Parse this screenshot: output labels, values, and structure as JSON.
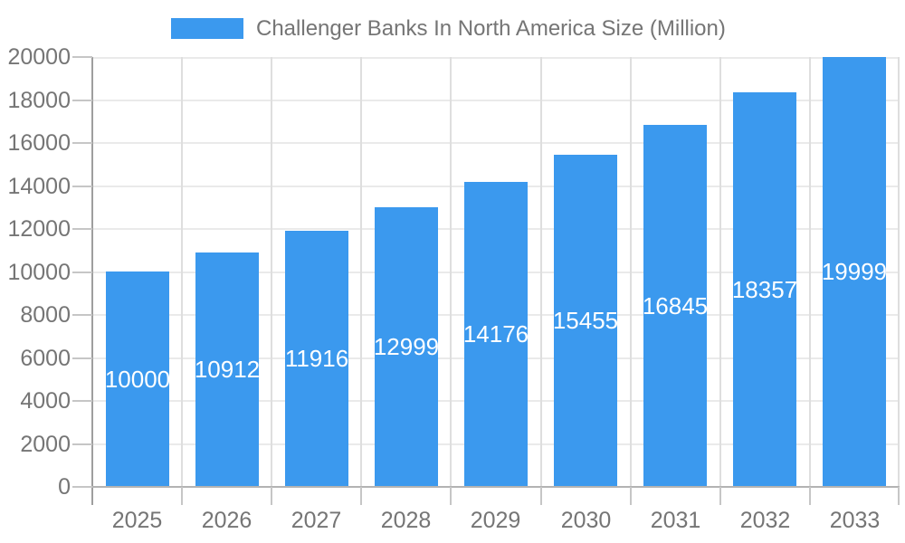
{
  "chart_data": {
    "type": "bar",
    "title": "Challenger Banks In North America Size (Million)",
    "legend": {
      "label": "Challenger Banks In North America Size (Million)",
      "position": "top-center"
    },
    "categories": [
      "2025",
      "2026",
      "2027",
      "2028",
      "2029",
      "2030",
      "2031",
      "2032",
      "2033"
    ],
    "values": [
      10000,
      10912,
      11916,
      12999,
      14176,
      15455,
      16845,
      18357,
      19999
    ],
    "bar_value_labels": [
      "10000",
      "10912",
      "11916",
      "12999",
      "14176",
      "15455",
      "16845",
      "18357",
      "19999"
    ],
    "xlabel": "",
    "ylabel": "",
    "ylim": [
      0,
      20000
    ],
    "ytick_step": 2000,
    "yticks": [
      "0",
      "2000",
      "4000",
      "6000",
      "8000",
      "10000",
      "12000",
      "14000",
      "16000",
      "18000",
      "20000"
    ],
    "grid": true,
    "colors": {
      "bar": "#3b99ee",
      "bar_label_text": "#ffffff",
      "axis_text": "#757575",
      "title_text": "#757575",
      "grid_horizontal": "#eaeaea",
      "grid_vertical": "#dedede",
      "y_axis_line": "#9e9e9e",
      "x_axis_line": "#b3b3b3",
      "tick": "#c6c6c6"
    }
  }
}
